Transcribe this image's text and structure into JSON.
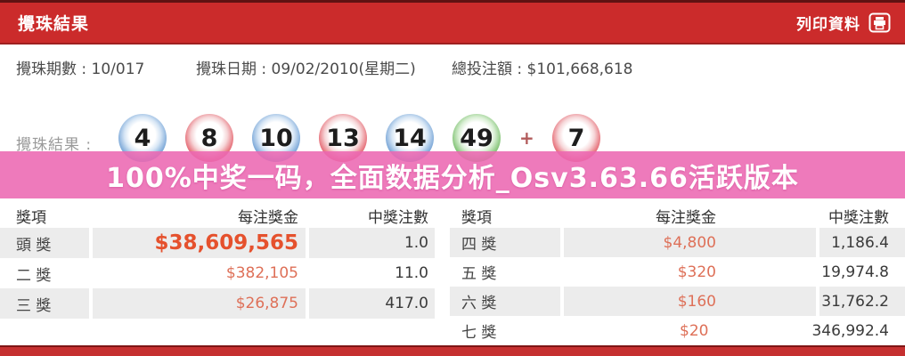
{
  "header": {
    "title": "攪珠結果",
    "print_label": "列印資料"
  },
  "info": {
    "draw_number": "攪珠期數 : 10/017",
    "draw_date": "攪珠日期 : 09/02/2010(星期二)",
    "turnover": "總投注額 : $101,668,618"
  },
  "result": {
    "label": "攪珠結果 :",
    "balls": [
      {
        "number": "4",
        "color": "blue"
      },
      {
        "number": "8",
        "color": "red"
      },
      {
        "number": "10",
        "color": "blue"
      },
      {
        "number": "13",
        "color": "red"
      },
      {
        "number": "14",
        "color": "blue"
      },
      {
        "number": "49",
        "color": "green"
      }
    ],
    "plus": "+",
    "extra_ball": {
      "number": "7",
      "color": "red"
    }
  },
  "banner": {
    "text": "100%中奖一码，全面数据分析_Osv3.63.66活跃版本"
  },
  "tables": {
    "headers": [
      "獎項",
      "每注獎金",
      "中獎注數"
    ],
    "left_rows": [
      {
        "prize": "頭 獎",
        "amount": "$38,609,565",
        "units": "1.0",
        "striped": true,
        "big": true
      },
      {
        "prize": "二 獎",
        "amount": "$382,105",
        "units": "11.0",
        "striped": false,
        "big": false
      },
      {
        "prize": "三 獎",
        "amount": "$26,875",
        "units": "417.0",
        "striped": true,
        "big": false
      }
    ],
    "right_rows": [
      {
        "prize": "四 獎",
        "amount": "$4,800",
        "units": "1,186.4",
        "striped": true,
        "big": false
      },
      {
        "prize": "五 獎",
        "amount": "$320",
        "units": "19,974.8",
        "striped": false,
        "big": false
      },
      {
        "prize": "六 獎",
        "amount": "$160",
        "units": "31,762.2",
        "striped": true,
        "big": false
      },
      {
        "prize": "七 獎",
        "amount": "$20",
        "units": "346,992.4",
        "striped": false,
        "big": false
      }
    ]
  },
  "colors": {
    "bar_red": "#cb2b2b",
    "banner_pink": "#ec68b2",
    "amount_red": "#de7058",
    "top_prize_red": "#e5512d",
    "stripe_gray": "#ececec"
  }
}
